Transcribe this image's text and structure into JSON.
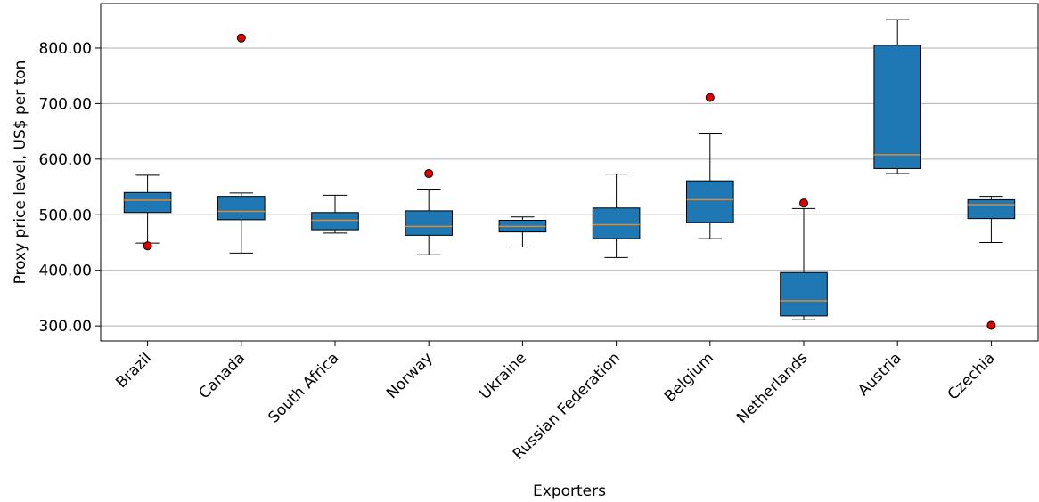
{
  "chart_data": {
    "type": "box",
    "xlabel": "Exporters",
    "ylabel": "Proxy price level, US$ per ton",
    "ylim": [
      273,
      880
    ],
    "yticks": [
      300,
      400,
      500,
      600,
      700,
      800
    ],
    "ytick_labels": [
      "300.00",
      "400.00",
      "500.00",
      "600.00",
      "700.00",
      "800.00"
    ],
    "grid": "horizontal",
    "categories": [
      "Brazil",
      "Canada",
      "South Africa",
      "Norway",
      "Ukraine",
      "Russian Federation",
      "Belgium",
      "Netherlands",
      "Austria",
      "Czechia"
    ],
    "boxes": [
      {
        "whisker_low": 449,
        "q1": 504,
        "median": 526,
        "q3": 540,
        "whisker_high": 571,
        "outliers": [
          444
        ]
      },
      {
        "whisker_low": 431,
        "q1": 491,
        "median": 506,
        "q3": 533,
        "whisker_high": 539,
        "outliers": [
          818
        ]
      },
      {
        "whisker_low": 467,
        "q1": 473,
        "median": 490,
        "q3": 504,
        "whisker_high": 535,
        "outliers": []
      },
      {
        "whisker_low": 428,
        "q1": 463,
        "median": 479,
        "q3": 507,
        "whisker_high": 546,
        "outliers": [
          574
        ]
      },
      {
        "whisker_low": 442,
        "q1": 469,
        "median": 479,
        "q3": 490,
        "whisker_high": 496,
        "outliers": []
      },
      {
        "whisker_low": 423,
        "q1": 457,
        "median": 482,
        "q3": 512,
        "whisker_high": 573,
        "outliers": []
      },
      {
        "whisker_low": 457,
        "q1": 486,
        "median": 527,
        "q3": 561,
        "whisker_high": 647,
        "outliers": [
          711
        ]
      },
      {
        "whisker_low": 311,
        "q1": 318,
        "median": 345,
        "q3": 396,
        "whisker_high": 511,
        "outliers": [
          521
        ]
      },
      {
        "whisker_low": 574,
        "q1": 583,
        "median": 608,
        "q3": 805,
        "whisker_high": 851,
        "outliers": []
      },
      {
        "whisker_low": 450,
        "q1": 493,
        "median": 518,
        "q3": 527,
        "whisker_high": 533,
        "outliers": [
          301
        ]
      }
    ],
    "colors": {
      "box_fill": "#1f77b4",
      "median": "#e08a2c",
      "outlier": "#e00000",
      "grid": "#b0b0b0"
    }
  }
}
